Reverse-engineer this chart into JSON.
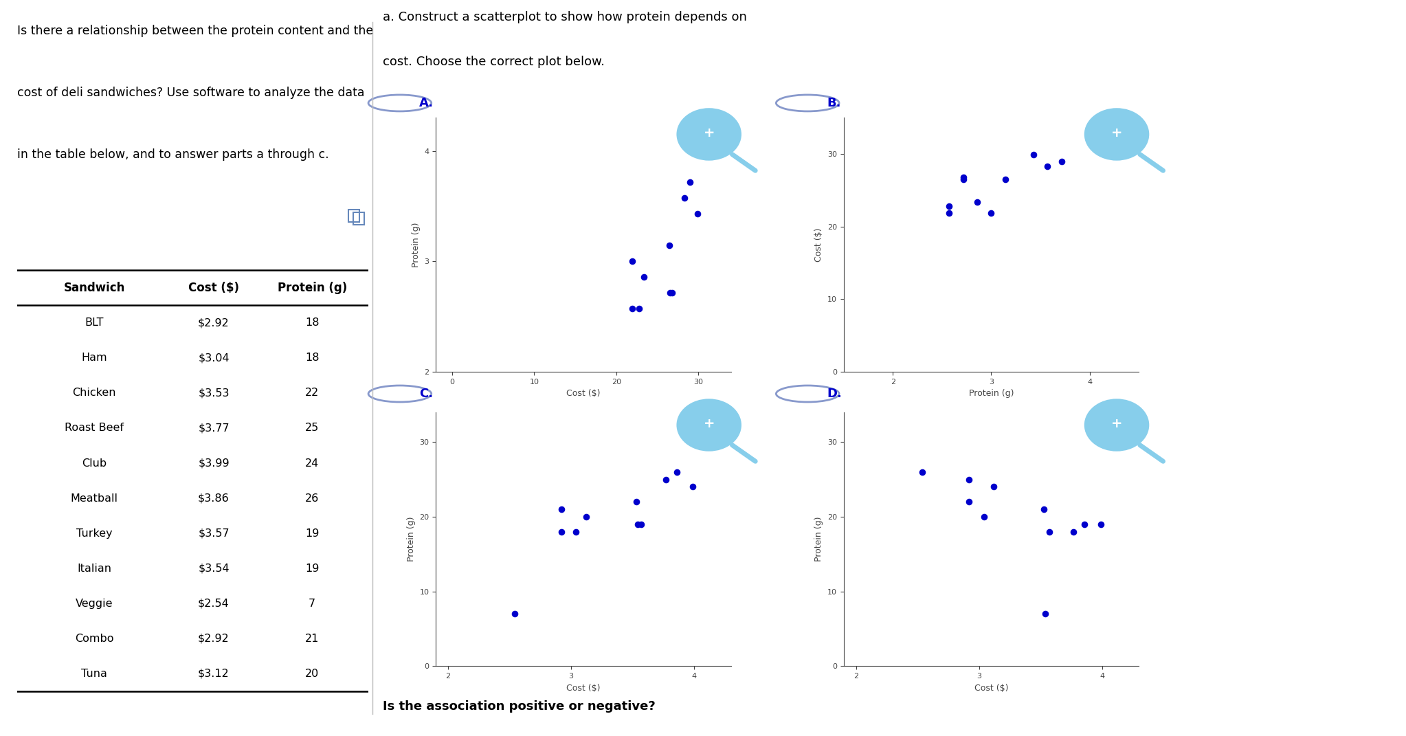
{
  "question_text_line1": "Is there a relationship between the protein content and the",
  "question_text_line2": "cost of deli sandwiches? Use software to analyze the data",
  "question_text_line3": "in the table below, and to answer parts a through c.",
  "part_a_line1": "a. Construct a scatterplot to show how protein depends on",
  "part_a_line2": "cost. Choose the correct plot below.",
  "bottom_text": "Is the association positive or negative?",
  "sandwiches": [
    "BLT",
    "Ham",
    "Chicken",
    "Roast Beef",
    "Club",
    "Meatball",
    "Turkey",
    "Italian",
    "Veggie",
    "Combo",
    "Tuna"
  ],
  "cost": [
    2.92,
    3.04,
    3.53,
    3.77,
    3.99,
    3.86,
    3.57,
    3.54,
    2.54,
    2.92,
    3.12
  ],
  "protein": [
    18,
    18,
    22,
    25,
    24,
    26,
    19,
    19,
    7,
    21,
    20
  ],
  "protein_D": [
    22,
    20,
    21,
    18,
    19,
    19,
    18,
    7,
    26,
    25,
    24
  ],
  "col_headers": [
    "Sandwich",
    "Cost ($)",
    "Protein (g)"
  ],
  "cost_display": [
    "$2.92",
    "$3.04",
    "$3.53",
    "$3.77",
    "$3.99",
    "$3.86",
    "$3.57",
    "$3.54",
    "$2.54",
    "$2.92",
    "$3.12"
  ],
  "dot_color": "#0000CC",
  "bg_color": "#ffffff",
  "text_color": "#000000",
  "zoom_color": "#87CEEB",
  "radio_stroke": "#7799cc",
  "axis_color": "#444444",
  "label_fontsize": 9,
  "tick_fontsize": 8
}
